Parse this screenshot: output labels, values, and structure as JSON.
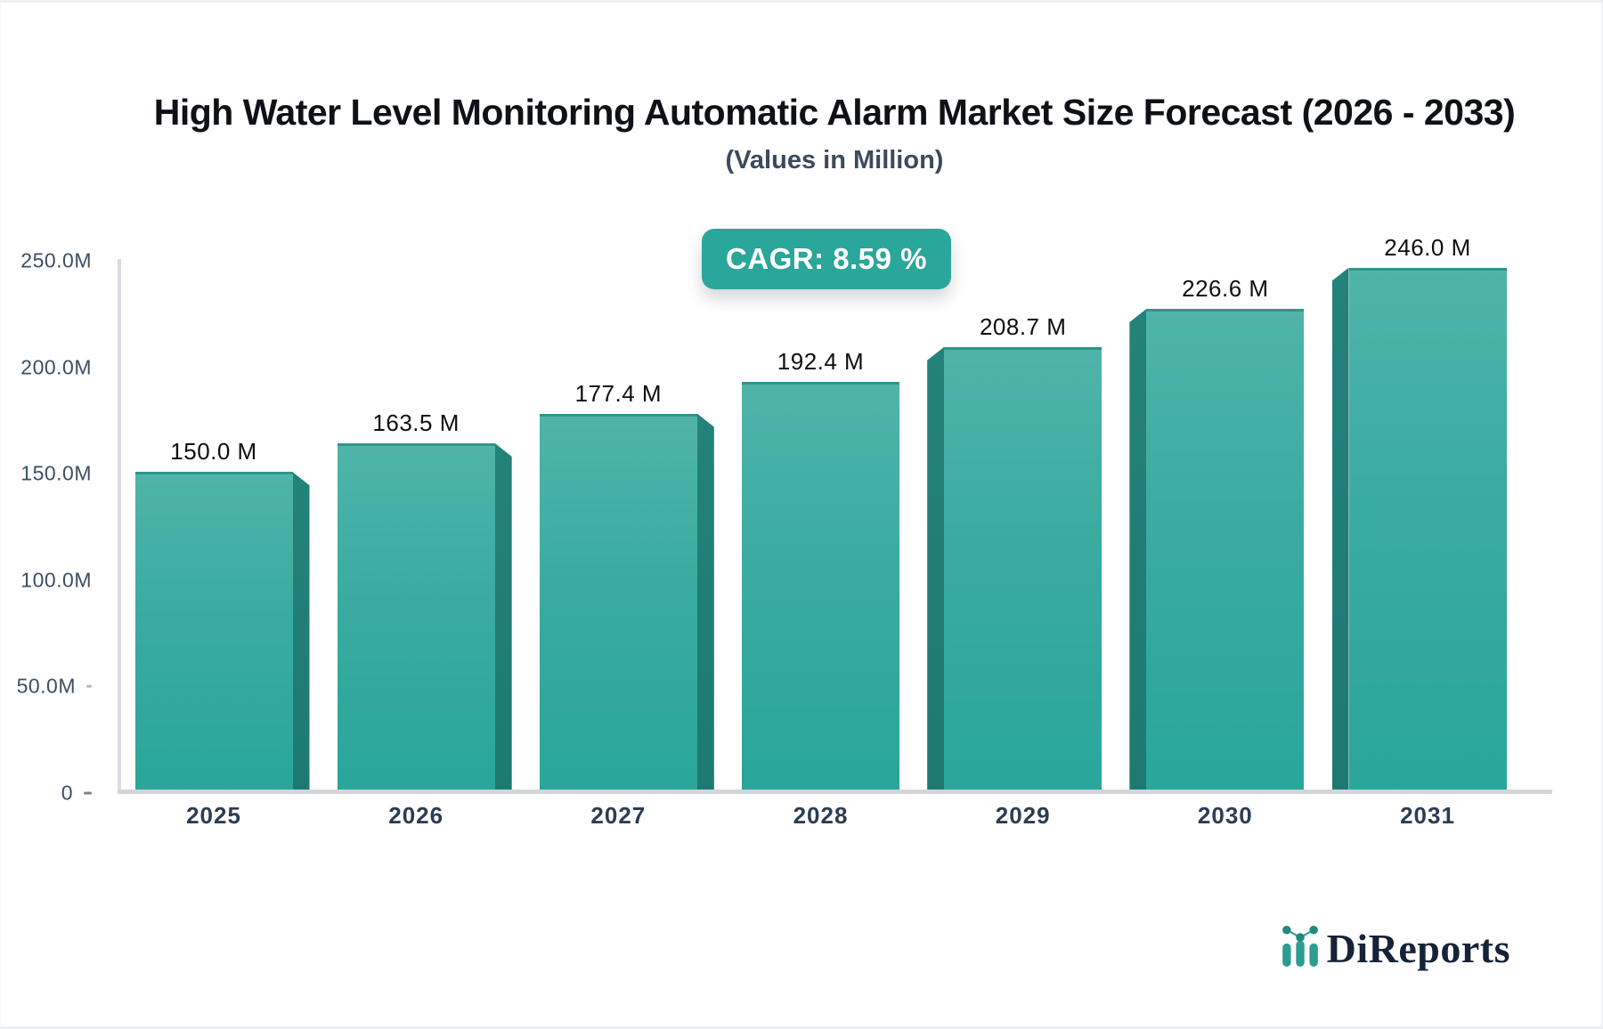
{
  "header": {
    "title": "High Water Level Monitoring Automatic Alarm Market Size Forecast (2026 - 2033)",
    "subtitle": "(Values in Million)"
  },
  "cagr_badge": {
    "label": "CAGR: 8.59 %"
  },
  "brand": {
    "name": "DiReports",
    "icon": "mini-bar-line-chart-icon"
  },
  "colors": {
    "accent_teal": "#2BA69B",
    "bar_face_top": "#4fb4aa",
    "bar_face_bottom": "#29a69a",
    "bar_side": "#1d7a72",
    "axis_gray": "#d2d6db",
    "badge_bg": "#2BA69B",
    "logo_navy": "#152238"
  },
  "chart_data": {
    "type": "bar",
    "title": "High Water Level Monitoring Automatic Alarm Market Size Forecast (2026 - 2033)",
    "subtitle": "(Values in Million)",
    "categories": [
      "2025",
      "2026",
      "2027",
      "2028",
      "2029",
      "2030",
      "2031"
    ],
    "values": [
      150.0,
      163.5,
      177.4,
      192.4,
      208.7,
      226.6,
      246.0
    ],
    "value_labels": [
      "150.0 M",
      "163.5 M",
      "177.4 M",
      "192.4 M",
      "208.7 M",
      "226.6 M",
      "246.0 M"
    ],
    "unit": "Million",
    "cagr": "8.59 %",
    "xlabel": "",
    "ylabel": "",
    "ylim": [
      0,
      250
    ],
    "grid": false,
    "legend": false,
    "y_ticks": [
      {
        "label": "250.0M",
        "value": 250,
        "tick_mark": false
      },
      {
        "label": "200.0M",
        "value": 200,
        "tick_mark": false
      },
      {
        "label": "150.0M",
        "value": 150,
        "tick_mark": false
      },
      {
        "label": "100.0M",
        "value": 100,
        "tick_mark": false
      },
      {
        "label": "50.0M",
        "value": 50,
        "tick_mark": true
      },
      {
        "label": "0",
        "value": 0,
        "tick_mark": true
      }
    ]
  }
}
